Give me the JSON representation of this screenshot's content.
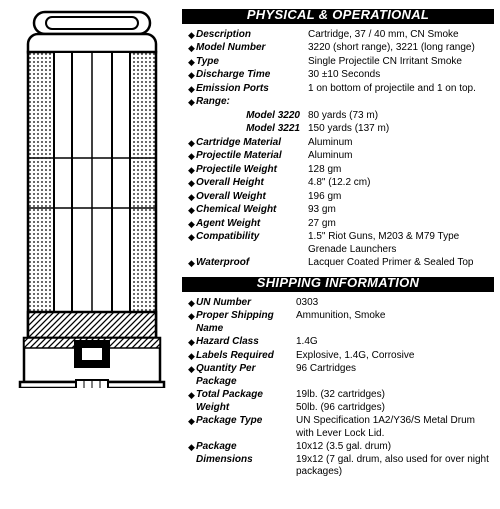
{
  "physical": {
    "title": "PHYSICAL & OPERATIONAL",
    "rows": [
      {
        "label": "Description",
        "value": "Cartridge, 37 / 40 mm, CN Smoke"
      },
      {
        "label": "Model Number",
        "value": "3220 (short range), 3221 (long range)"
      },
      {
        "label": "Type",
        "value": "Single Projectile CN Irritant Smoke"
      },
      {
        "label": "Discharge Time",
        "value": "30 ±10 Seconds"
      },
      {
        "label": "Emission Ports",
        "value": "1 on bottom of projectile and 1 on top."
      },
      {
        "label": "Range:",
        "value": ""
      }
    ],
    "range_sub": [
      {
        "label": "Model 3220",
        "value": "80 yards (73 m)"
      },
      {
        "label": "Model 3221",
        "value": "150 yards (137 m)"
      }
    ],
    "rows2": [
      {
        "label": "Cartridge Material",
        "value": "Aluminum"
      },
      {
        "label": "Projectile Material",
        "value": "Aluminum"
      },
      {
        "label": "Projectile Weight",
        "value": "128 gm"
      },
      {
        "label": "Overall Height",
        "value": "4.8\" (12.2 cm)"
      },
      {
        "label": "Overall Weight",
        "value": "196 gm"
      },
      {
        "label": "Chemical Weight",
        "value": "93 gm"
      },
      {
        "label": "Agent Weight",
        "value": "27 gm"
      },
      {
        "label": "Compatibility",
        "value": "1.5\" Riot Guns, M203 & M79 Type Grenade Launchers"
      },
      {
        "label": "Waterproof",
        "value": "Lacquer Coated Primer & Sealed Top"
      }
    ]
  },
  "shipping": {
    "title": "SHIPPING INFORMATION",
    "rows": [
      {
        "label": "UN Number",
        "value": "0303"
      },
      {
        "label": "Proper Shipping Name",
        "value": "Ammunition, Smoke"
      },
      {
        "label": "Hazard Class",
        "value": "1.4G"
      },
      {
        "label": "Labels Required",
        "value": "Explosive, 1.4G, Corrosive"
      },
      {
        "label": "Quantity Per Package",
        "value": "96 Cartridges"
      },
      {
        "label": "Total Package Weight",
        "value": "19lb. (32 cartridges)\n50lb. (96 cartridges)"
      },
      {
        "label": "Package Type",
        "value": "UN Specification 1A2/Y36/S Metal Drum with Lever Lock Lid."
      },
      {
        "label": "Package Dimensions",
        "value": "10x12 (3.5 gal. drum)\n19x12 (7 gal. drum, also used for over night packages)"
      }
    ]
  },
  "diagram": {
    "stroke": "#000000",
    "fill_bg": "#ffffff"
  }
}
